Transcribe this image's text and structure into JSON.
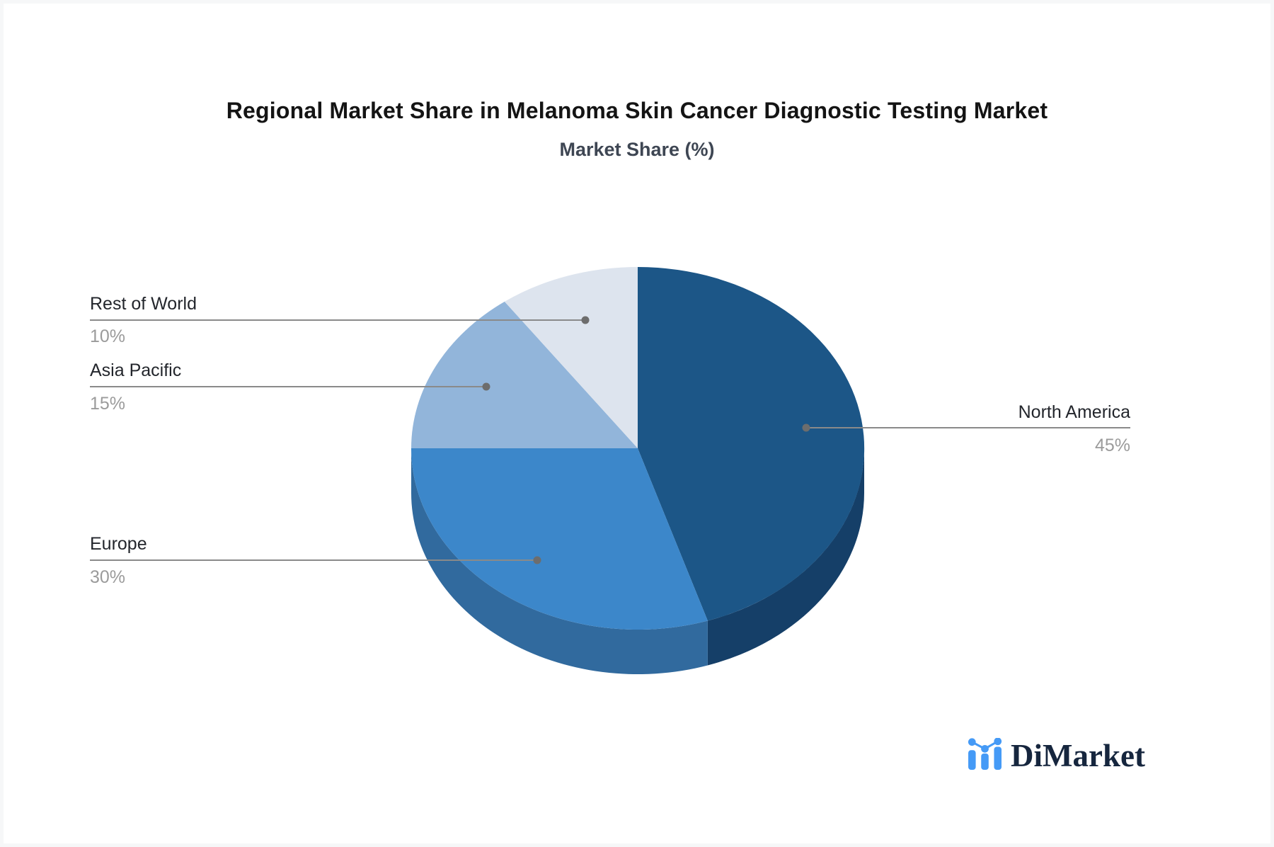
{
  "title": "Regional Market Share in Melanoma Skin Cancer Diagnostic Testing Market",
  "subtitle": "Market Share (%)",
  "chart_data": {
    "type": "pie",
    "style": "3d-pie",
    "title": "Regional Market Share in Melanoma Skin Cancer Diagnostic Testing Market",
    "subtitle": "Market Share (%)",
    "total": 100,
    "start_angle_deg_from_top": 0,
    "direction": "clockwise",
    "legend_position": "none",
    "labels_position": "leader-lines",
    "slices": [
      {
        "label": "North America",
        "value": 45,
        "pct_label": "45%",
        "color": "#1c5687",
        "depth_color": "#153f68"
      },
      {
        "label": "Europe",
        "value": 30,
        "pct_label": "30%",
        "color": "#3c87ca",
        "depth_color": "#316a9e"
      },
      {
        "label": "Asia Pacific",
        "value": 15,
        "pct_label": "15%",
        "color": "#92b5da",
        "depth_color": "#7ea3c9"
      },
      {
        "label": "Rest of World",
        "value": 10,
        "pct_label": "10%",
        "color": "#dde4ee",
        "depth_color": "#c3cfde"
      }
    ]
  },
  "branding": {
    "logo_text": "DiMarket",
    "logo_icon": "bar-line-chart-icon",
    "logo_text_color": "#16263e",
    "logo_icon_color": "#459af6"
  },
  "colors": {
    "background": "#ffffff",
    "frame": "#f6f7f8",
    "title_text": "#141414",
    "subtitle_text": "#3e4653",
    "label_text": "#23262c",
    "pct_text": "#9b9b9b",
    "leader_line": "#8a8a8a",
    "leader_dot": "#6d6d6d"
  }
}
